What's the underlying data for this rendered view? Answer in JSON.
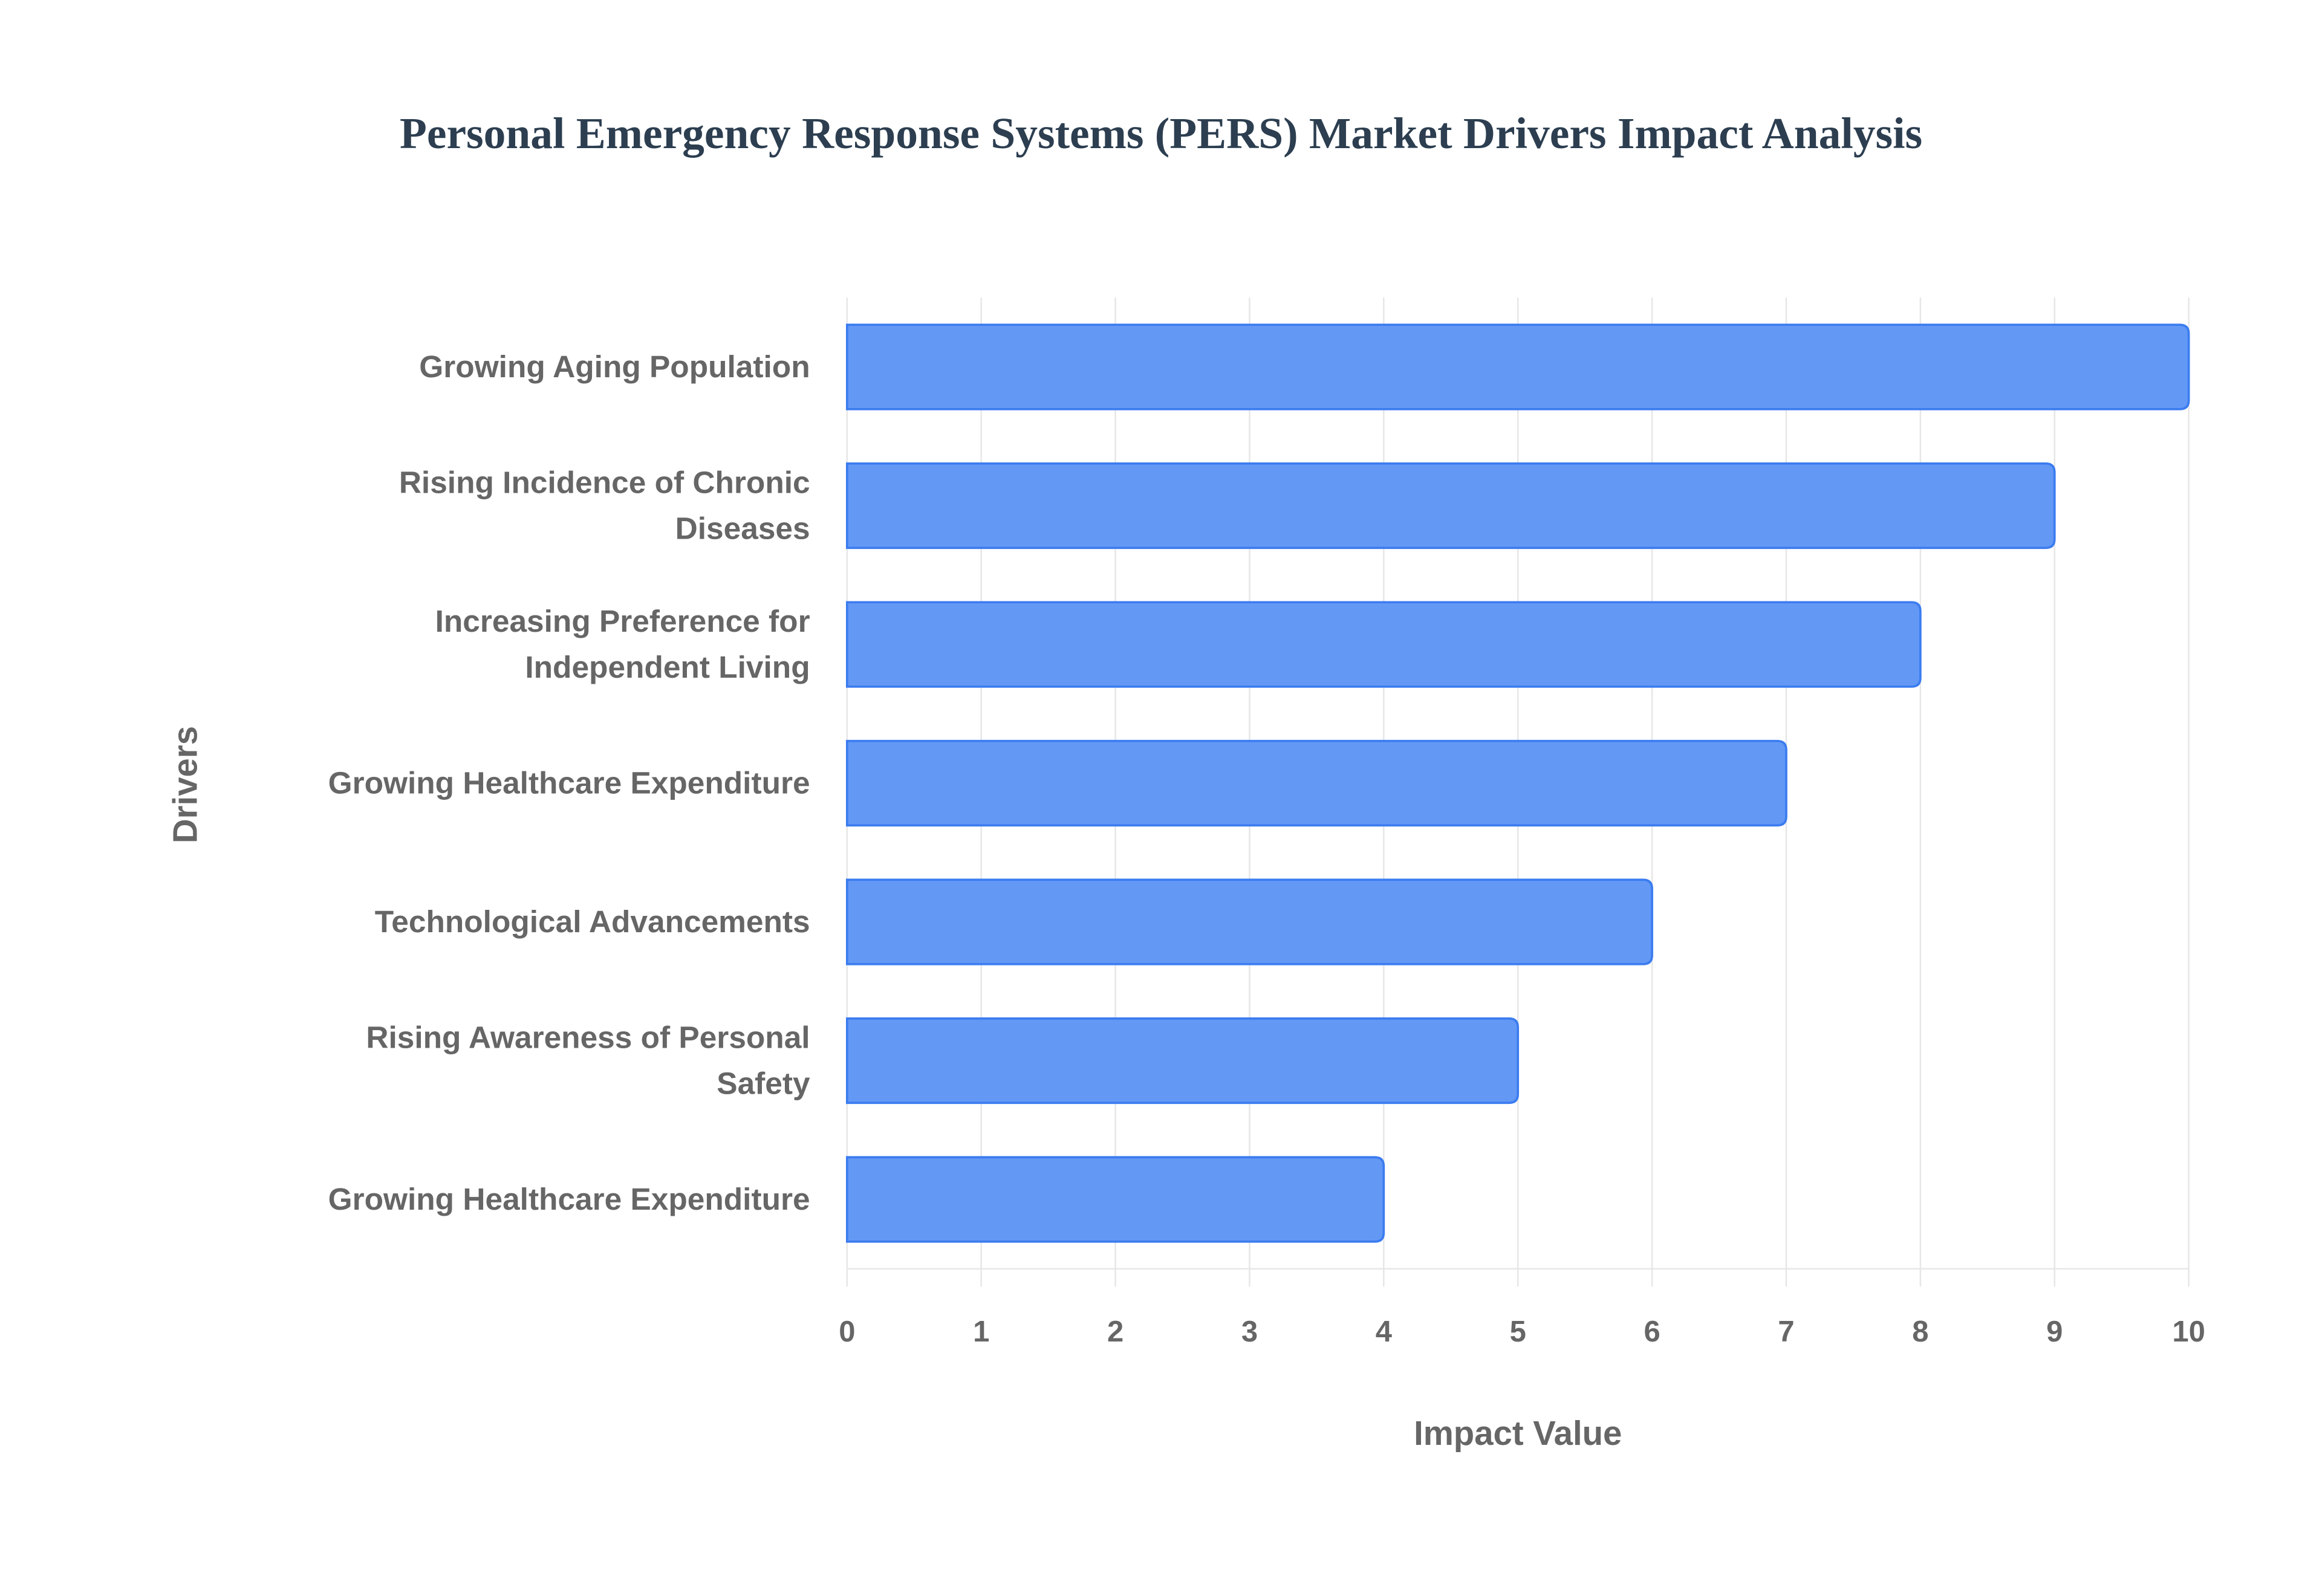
{
  "chart_data": {
    "type": "bar",
    "orientation": "horizontal",
    "title": "Personal Emergency Response Systems (PERS) Market Drivers Impact Analysis",
    "xlabel": "Impact Value",
    "ylabel": "Drivers",
    "xlim": [
      0,
      10
    ],
    "xticks": [
      "0",
      "1",
      "2",
      "3",
      "4",
      "5",
      "6",
      "7",
      "8",
      "9",
      "10"
    ],
    "grid": true,
    "categories": [
      [
        "Growing Aging Population"
      ],
      [
        "Rising Incidence of Chronic",
        "Diseases"
      ],
      [
        "Increasing Preference for",
        "Independent Living"
      ],
      [
        "Growing Healthcare Expenditure"
      ],
      [
        "Technological Advancements"
      ],
      [
        "Rising Awareness of Personal",
        "Safety"
      ],
      [
        "Growing Healthcare Expenditure"
      ]
    ],
    "values": [
      10,
      9,
      8,
      7,
      6,
      5,
      4
    ],
    "bar_color": "#6399f5",
    "bar_border": "#3b7cf0"
  }
}
